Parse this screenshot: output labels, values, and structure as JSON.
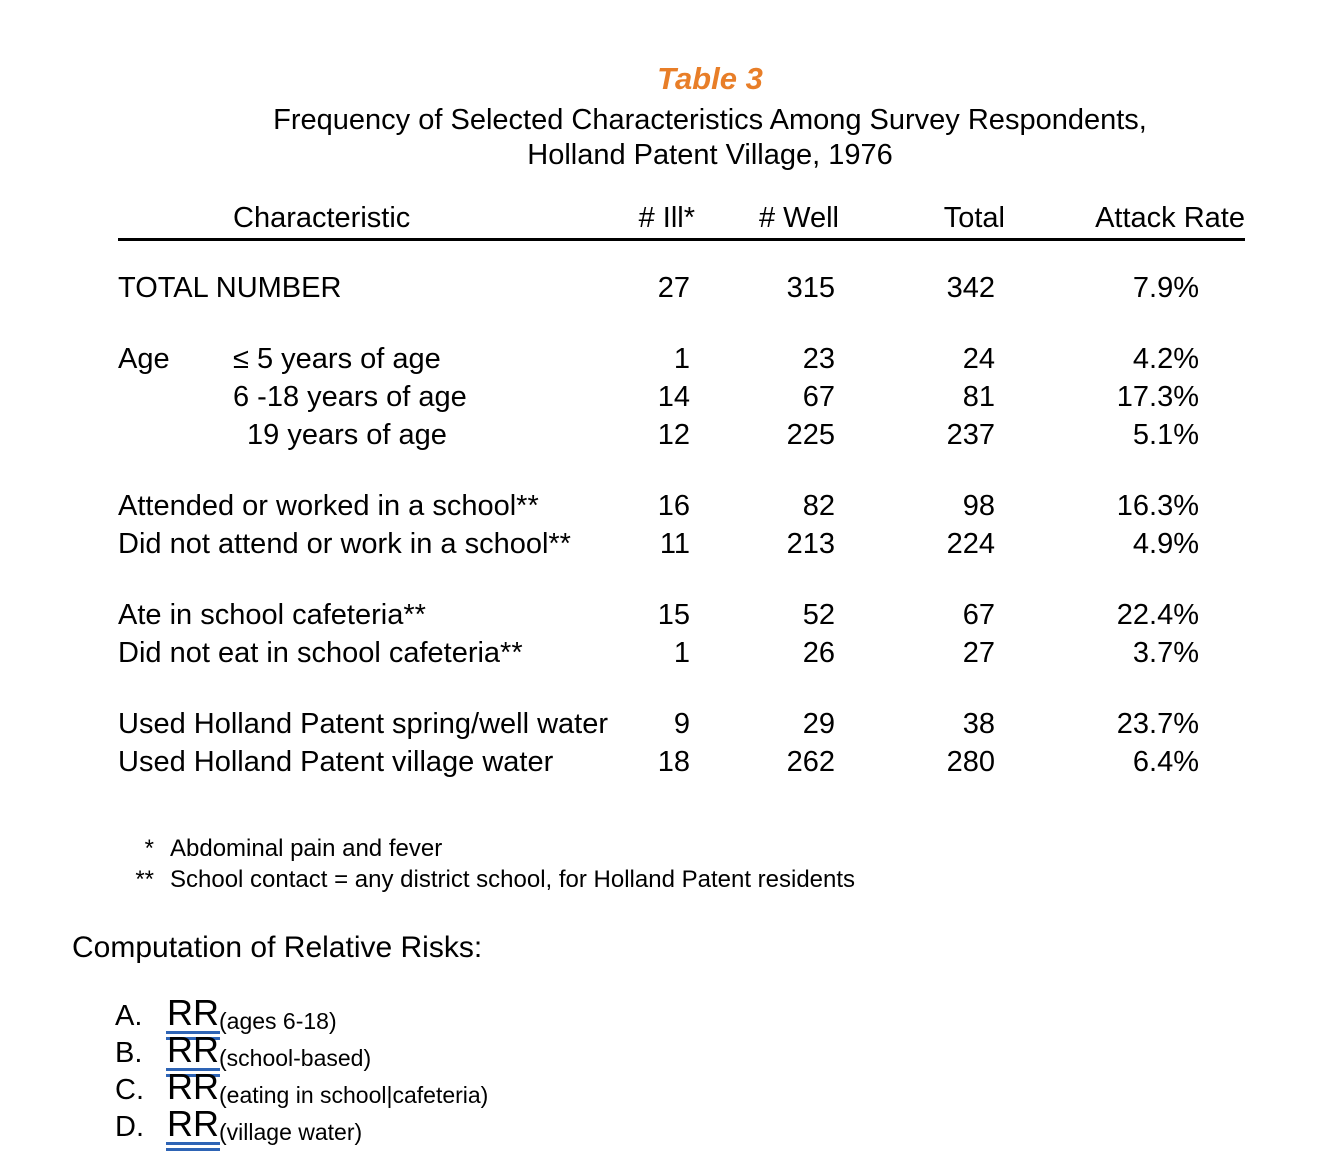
{
  "title": "Table 3",
  "subtitle": {
    "line1": "Frequency of Selected Characteristics Among Survey Respondents,",
    "line2": "Holland Patent Village, 1976"
  },
  "table": {
    "headers": {
      "characteristic": "Characteristic",
      "ill": "# Ill*",
      "well": "# Well",
      "total": "Total",
      "rate": "Attack Rate"
    },
    "rows": [
      {
        "prefix": "",
        "label": "TOTAL NUMBER",
        "ill": "27",
        "well": "315",
        "total": "342",
        "rate": "7.9%"
      },
      {
        "prefix": "Age",
        "label": "≤ 5 years of age",
        "ill": "1",
        "well": "23",
        "total": "24",
        "rate": "4.2%"
      },
      {
        "prefix": "",
        "label": "6 -18 years of age",
        "ill": "14",
        "well": "67",
        "total": "81",
        "rate": "17.3%"
      },
      {
        "prefix": "",
        "label": "19 years of age",
        "ill": "12",
        "well": "225",
        "total": "237",
        "rate": "5.1%"
      },
      {
        "prefix": "",
        "label": "Attended or worked in a school**",
        "ill": "16",
        "well": "82",
        "total": "98",
        "rate": "16.3%"
      },
      {
        "prefix": "",
        "label": "Did not attend or work in a school**",
        "ill": "11",
        "well": "213",
        "total": "224",
        "rate": "4.9%"
      },
      {
        "prefix": "",
        "label": "Ate in school cafeteria**",
        "ill": "15",
        "well": "52",
        "total": "67",
        "rate": "22.4%"
      },
      {
        "prefix": "",
        "label": "Did not eat in school cafeteria**",
        "ill": "1",
        "well": "26",
        "total": "27",
        "rate": "3.7%"
      },
      {
        "prefix": "",
        "label": "Used Holland Patent spring/well water",
        "ill": "9",
        "well": "29",
        "total": "38",
        "rate": "23.7%"
      },
      {
        "prefix": "",
        "label": "Used Holland Patent village water",
        "ill": "18",
        "well": "262",
        "total": "280",
        "rate": "6.4%"
      }
    ]
  },
  "footnotes": [
    {
      "mark": "*",
      "text": "Abdominal pain and fever"
    },
    {
      "mark": "**",
      "text": "School contact = any district school, for Holland Patent residents"
    }
  ],
  "computation": {
    "heading": "Computation of Relative Risks:",
    "items": [
      {
        "letter": "A.",
        "rr": "RR",
        "subscript": "(ages 6-18)"
      },
      {
        "letter": "B.",
        "rr": "RR",
        "subscript": "(school-based)"
      },
      {
        "letter": "C.",
        "rr": "RR",
        "subscript": "(eating in school|cafeteria)"
      },
      {
        "letter": "D.",
        "rr": "RR",
        "subscript": "(village water)"
      }
    ]
  },
  "colors": {
    "title_orange": "#E87E28",
    "rr_underline_blue": "#2E64B5",
    "text": "#000000",
    "background": "#FFFFFF"
  }
}
